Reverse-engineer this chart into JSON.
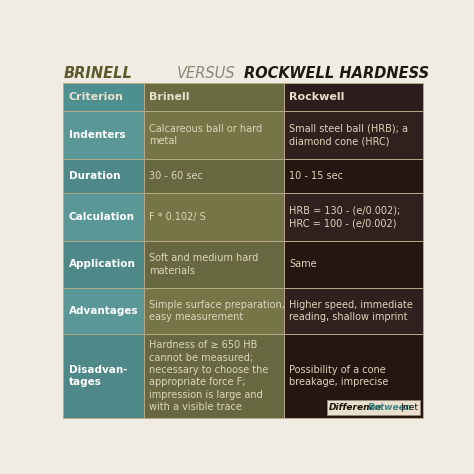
{
  "title_left": "BRINELL",
  "title_vs": "VERSUS",
  "title_right": "ROCKWELL HARDNESS",
  "bg_color": "#f0ece4",
  "header_row": [
    "Criterion",
    "Brinell",
    "Rockwell"
  ],
  "rows": [
    {
      "criterion": "Indenters",
      "brinell": "Calcareous ball or hard\nmetal",
      "rockwell": "Small steel ball (HRB); a\ndiamond cone (HRC)"
    },
    {
      "criterion": "Duration",
      "brinell": "30 - 60 sec",
      "rockwell": "10 - 15 sec"
    },
    {
      "criterion": "Calculation",
      "brinell": "F * 0.102/ S",
      "rockwell": "HRB = 130 - (e/0.002);\nHRC = 100 - (e/0.002)"
    },
    {
      "criterion": "Application",
      "brinell": "Soft and medium hard\nmaterials",
      "rockwell": "Same"
    },
    {
      "criterion": "Advantages",
      "brinell": "Simple surface preparation,\neasy measurement",
      "rockwell": "Higher speed, immediate\nreading, shallow imprint"
    },
    {
      "criterion": "Disadvan-\ntages",
      "brinell": "Hardness of ≥ 650 HB\ncannot be measured;\nnecessary to choose the\nappropriate force F;\nimpression is large and\nwith a visible trace",
      "rockwell": "Possibility of a cone\nbreakage, imprecise"
    }
  ],
  "title_color_brinell": "#5a5a2a",
  "title_color_vs": "#888878",
  "title_color_rockwell": "#1a1a10",
  "col1_header_bg": "#4e9090",
  "col2_header_bg": "#6b6b42",
  "col3_header_bg": "#2c1e1c",
  "col1_even_bg": "#5a9898",
  "col1_odd_bg": "#4e8888",
  "col2_even_bg": "#757548",
  "col2_odd_bg": "#686840",
  "col3_even_bg": "#30201e",
  "col3_odd_bg": "#251612",
  "header_text_color": "#e8e0cc",
  "body_text_color": "#ddd5bc",
  "criterion_text_color": "#ffffff",
  "border_color": "#b8a888"
}
